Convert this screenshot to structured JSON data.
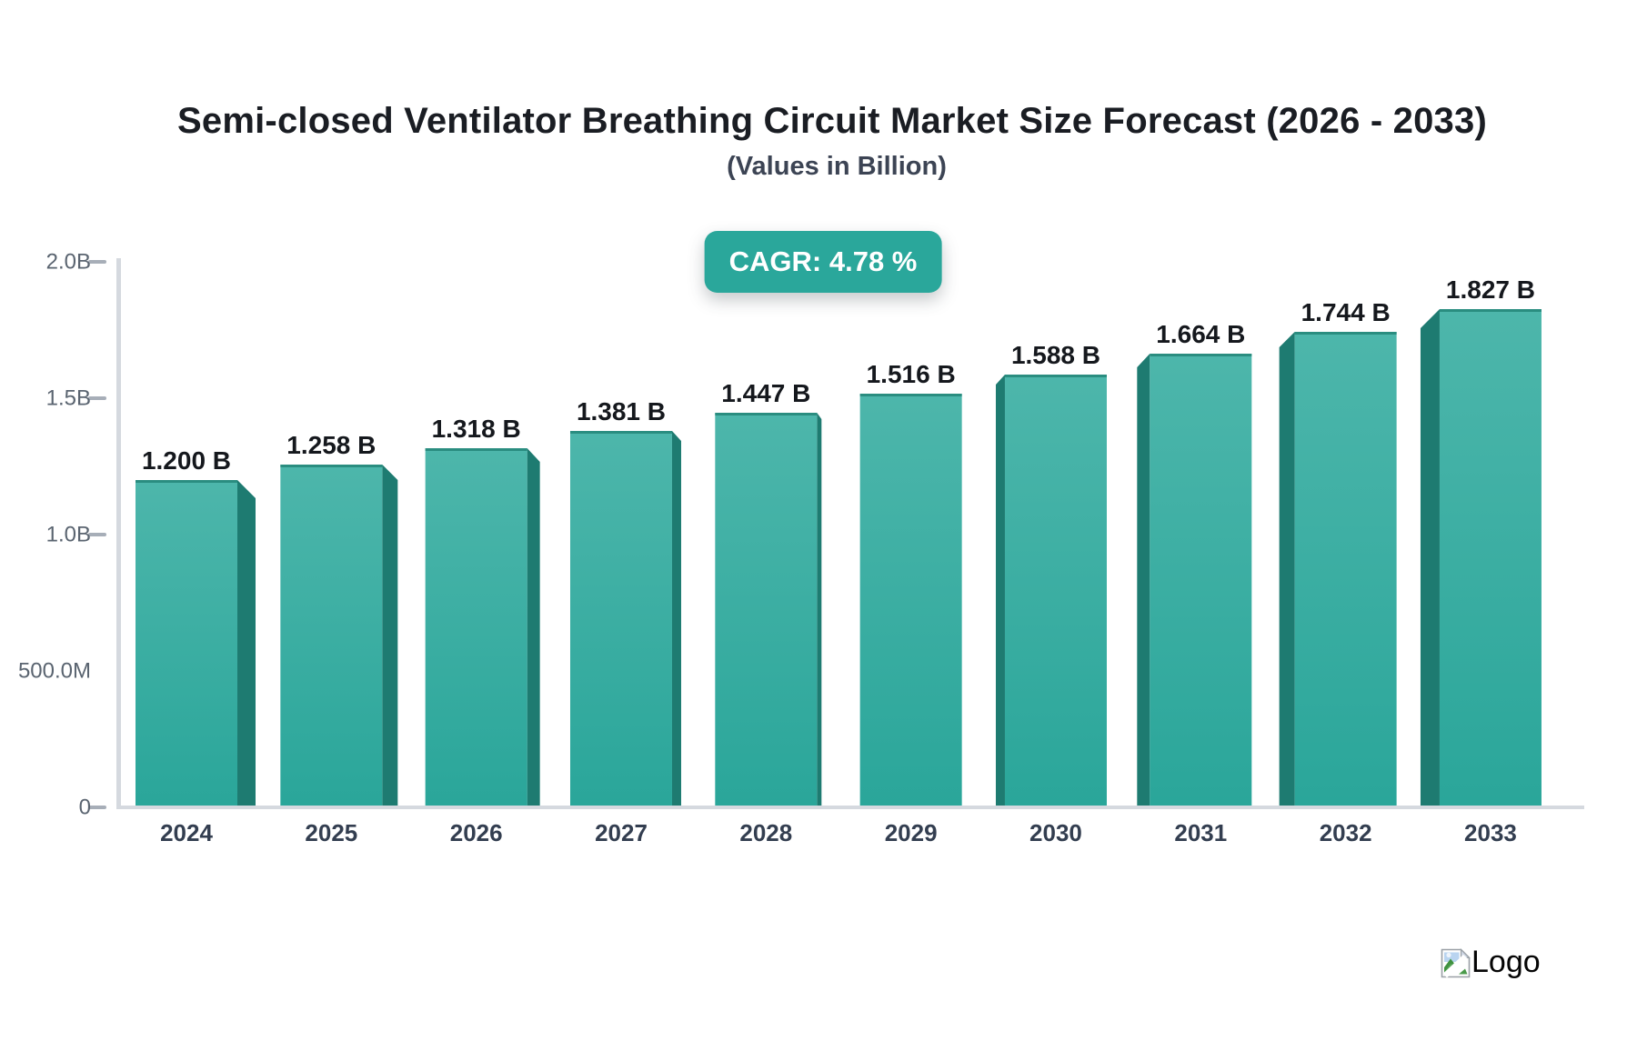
{
  "header": {
    "title": "Semi-closed Ventilator Breathing Circuit Market Size Forecast (2026 - 2033)",
    "subtitle": "(Values in Billion)",
    "cagr_label": "CAGR: 4.78 %"
  },
  "chart_data": {
    "type": "bar",
    "title": "Semi-closed Ventilator Breathing Circuit Market Size Forecast (2026 - 2033)",
    "subtitle": "(Values in Billion)",
    "unit": "Billion",
    "cagr": "4.78 %",
    "categories": [
      "2024",
      "2025",
      "2026",
      "2027",
      "2028",
      "2029",
      "2030",
      "2031",
      "2032",
      "2033"
    ],
    "values": [
      1.2,
      1.258,
      1.318,
      1.381,
      1.447,
      1.516,
      1.588,
      1.664,
      1.744,
      1.827
    ],
    "value_labels": [
      "1.200 B",
      "1.258 B",
      "1.318 B",
      "1.381 B",
      "1.447 B",
      "1.516 B",
      "1.588 B",
      "1.664 B",
      "1.744 B",
      "1.827 B"
    ],
    "xlabel": "",
    "ylabel": "",
    "ylim": [
      0,
      2.0
    ],
    "grid": false,
    "legend": "none",
    "y_axis_ticks": [
      {
        "label": "2.0B",
        "value": 2.0,
        "dash": true
      },
      {
        "label": "1.5B",
        "value": 1.5,
        "dash": true
      },
      {
        "label": "1.0B",
        "value": 1.0,
        "dash": true
      },
      {
        "label": "500.0M",
        "value": 0.5,
        "dash": false
      },
      {
        "label": "0",
        "value": 0.0,
        "dash": true
      }
    ],
    "colors": {
      "bar_front_top": "#4db6ab",
      "bar_front_bottom": "#2aa69a",
      "bar_side": "#1e7b71",
      "bar_top_edge": "#2a8d80",
      "badge_bg": "#2aa79b",
      "axis_line": "#d5d9df",
      "tick_dash": "#a7aeb8",
      "tick_label": "#5a6470",
      "year_label": "#333e50",
      "value_label": "#15181d",
      "title_color": "#1a1d23",
      "subtitle_color": "#3c4454"
    }
  },
  "footer": {
    "logo_alt": "Logo"
  }
}
